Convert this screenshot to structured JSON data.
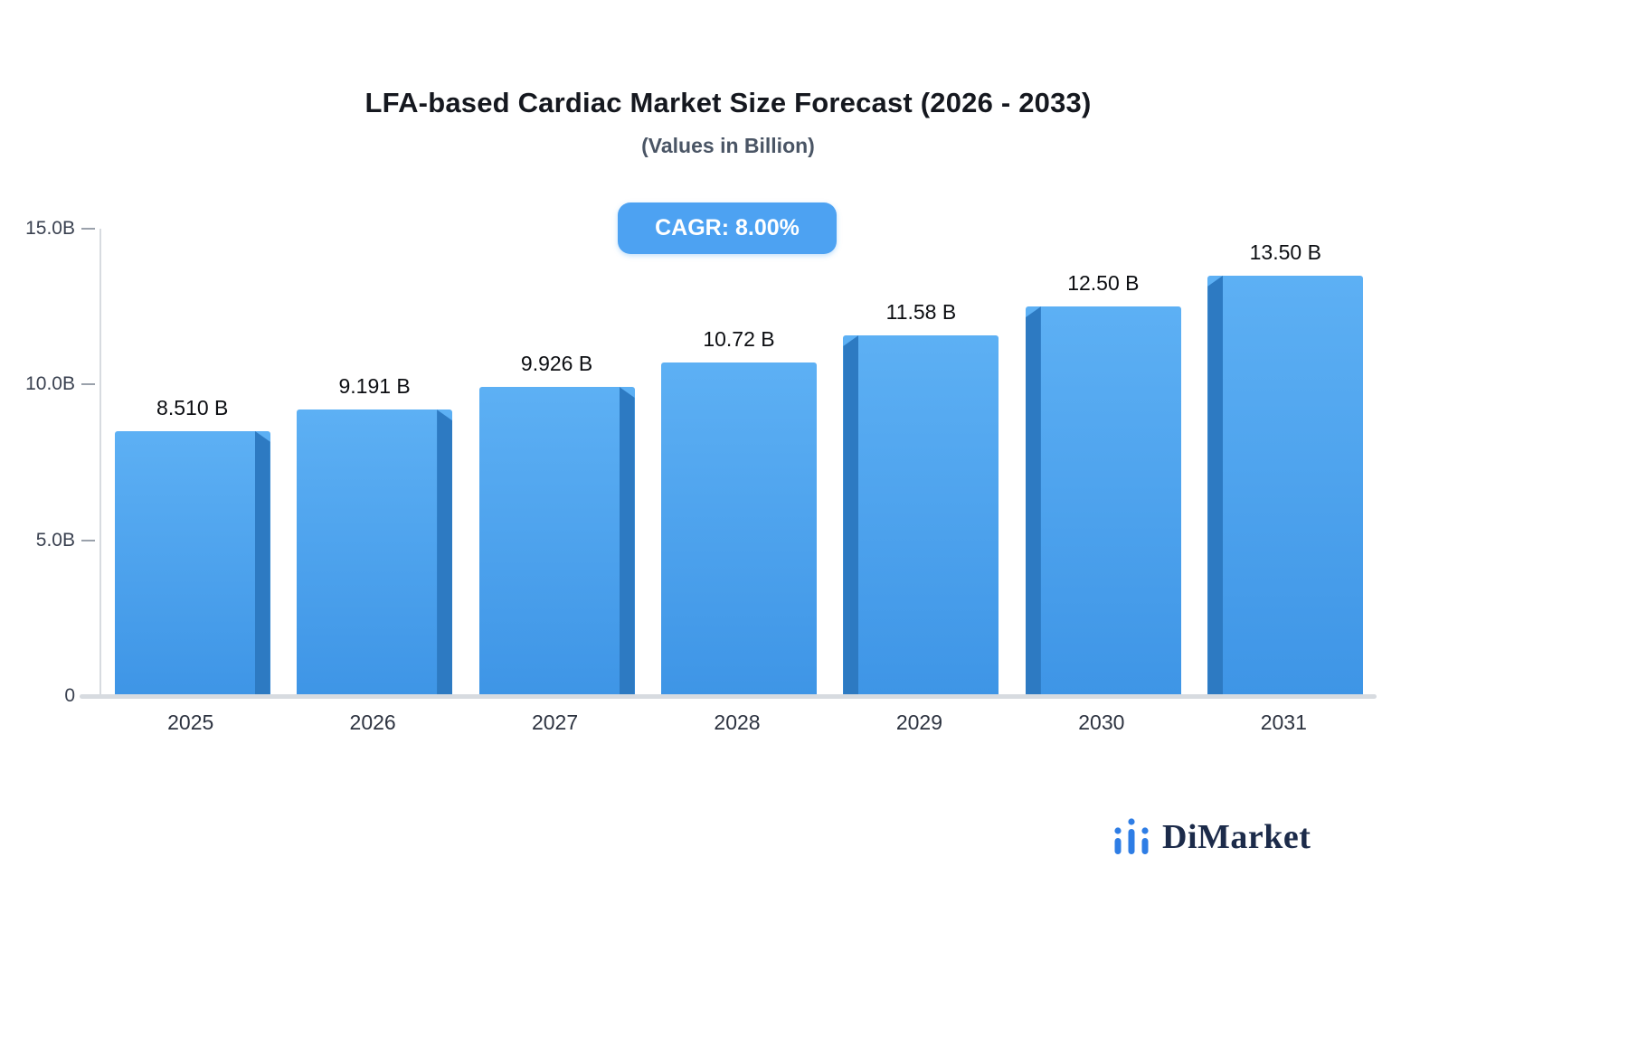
{
  "title": "LFA-based Cardiac Market Size Forecast (2026 - 2033)",
  "subtitle": "(Values in Billion)",
  "badge": {
    "label": "CAGR: 8.00%",
    "bg_color": "#4da2f2"
  },
  "chart_data": {
    "type": "bar",
    "categories": [
      "2025",
      "2026",
      "2027",
      "2028",
      "2029",
      "2030",
      "2031"
    ],
    "values": [
      8.51,
      9.191,
      9.926,
      10.72,
      11.58,
      12.5,
      13.5
    ],
    "value_labels": [
      "8.510 B",
      "9.191 B",
      "9.926 B",
      "10.72 B",
      "11.58 B",
      "12.50 B",
      "13.50 B"
    ],
    "title": "LFA-based Cardiac Market Size Forecast (2026 - 2033)",
    "xlabel": "",
    "ylabel": "",
    "ylim": [
      0,
      15
    ],
    "ytick_labels": [
      "15.0B",
      "10.0B",
      "5.0B",
      "0"
    ],
    "grid": false,
    "legend": "none",
    "bar_color_top": "#5db0f4",
    "bar_color_bottom": "#3e95e6",
    "bar_side_color": "#2d7ac2"
  },
  "logo": {
    "text": "DiMarket"
  }
}
